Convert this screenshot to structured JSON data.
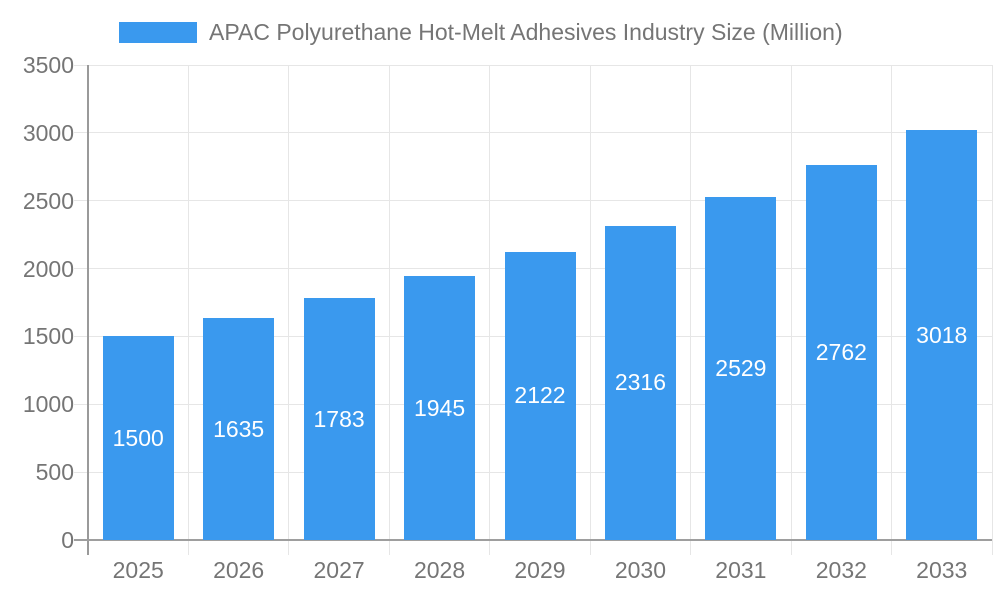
{
  "chart_data": {
    "type": "bar",
    "title": "APAC Polyurethane Hot-Melt Adhesives Industry Size (Million)",
    "categories": [
      "2025",
      "2026",
      "2027",
      "2028",
      "2029",
      "2030",
      "2031",
      "2032",
      "2033"
    ],
    "series": [
      {
        "name": "APAC Polyurethane Hot-Melt Adhesives Industry Size (Million)",
        "values": [
          1500,
          1635,
          1783,
          1945,
          2122,
          2316,
          2529,
          2762,
          3018
        ]
      }
    ],
    "xlabel": "",
    "ylabel": "",
    "ylim": [
      0,
      3500
    ],
    "yticks": [
      0,
      500,
      1000,
      1500,
      2000,
      2500,
      3000,
      3500
    ],
    "grid": true,
    "legend_position": "top",
    "colors": {
      "bar": "#3a99ee",
      "bar_value_text": "#ffffff",
      "axis_text": "#757575",
      "gridline": "#e6e6e6",
      "axis_line": "#9a9a9a",
      "background": "#ffffff"
    }
  }
}
